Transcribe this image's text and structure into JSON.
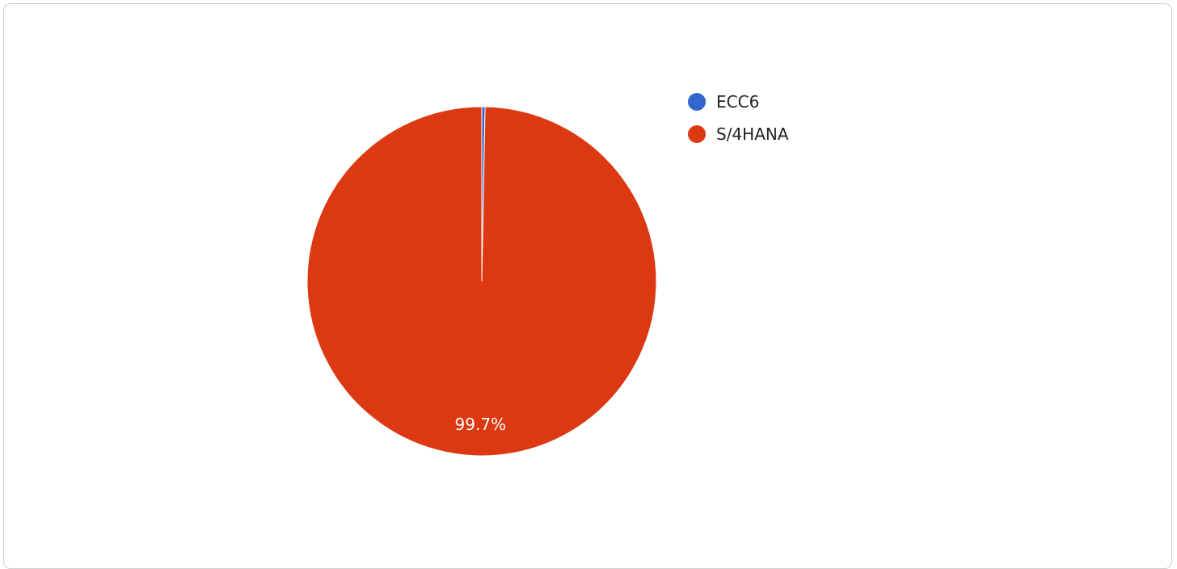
{
  "chart_data": {
    "type": "pie",
    "title": "",
    "series": [
      {
        "name": "ECC6",
        "value": 0.3,
        "color": "#3366cc",
        "label": ""
      },
      {
        "name": "S/4HANA",
        "value": 99.7,
        "color": "#dc3912",
        "label": "99.7%"
      }
    ],
    "legend_position": "right",
    "legend": [
      {
        "label": "ECC6",
        "color": "#3366cc"
      },
      {
        "label": "S/4HANA",
        "color": "#dc3912"
      }
    ]
  }
}
